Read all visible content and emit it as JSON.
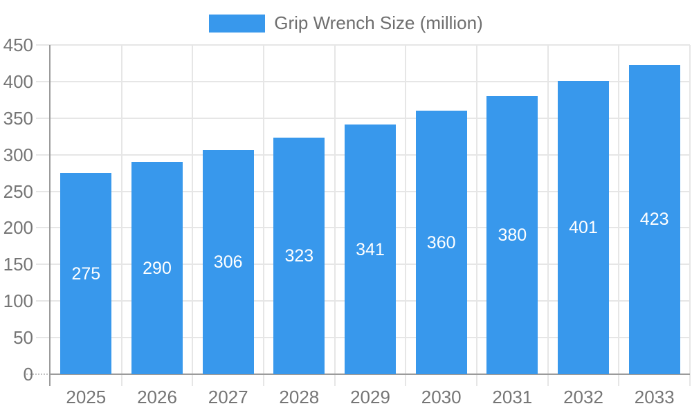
{
  "chart_data": {
    "type": "bar",
    "title": "",
    "legend": "Grip Wrench Size (million)",
    "legend_position": "top-center",
    "categories": [
      "2025",
      "2026",
      "2027",
      "2028",
      "2029",
      "2030",
      "2031",
      "2032",
      "2033"
    ],
    "series": [
      {
        "name": "Grip Wrench Size (million)",
        "values": [
          275,
          290,
          306,
          323,
          341,
          360,
          380,
          401,
          423
        ]
      }
    ],
    "value_labels_shown": true,
    "xlabel": "",
    "ylabel": "",
    "ylim": [
      0,
      450
    ],
    "ytick_step": 50,
    "ytick_labels": [
      "0",
      "50",
      "100",
      "150",
      "200",
      "250",
      "300",
      "350",
      "400",
      "450"
    ],
    "grid": true,
    "colors": {
      "bar": "#3898EC",
      "grid": "#e6e6e6",
      "axis": "#9b9b9b",
      "tick_text": "#757575",
      "legend_text": "#6e6e6e",
      "value_label_text": "#ffffff",
      "background": "#ffffff"
    }
  }
}
